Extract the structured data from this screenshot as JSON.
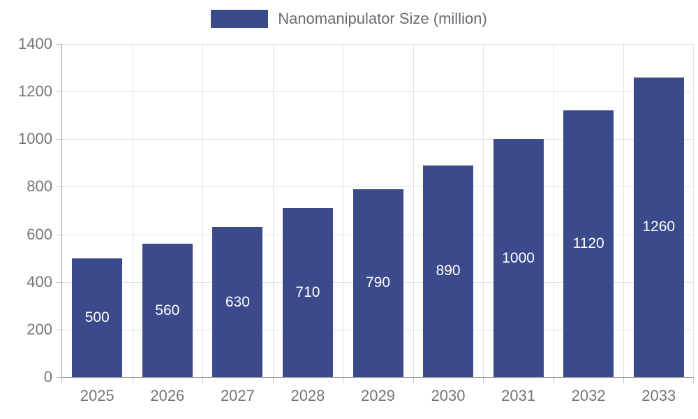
{
  "legend": {
    "label": "Nanomanipulator Size (million)"
  },
  "chart_data": {
    "type": "bar",
    "title": "Nanomanipulator Size (million)",
    "categories": [
      "2025",
      "2026",
      "2027",
      "2028",
      "2029",
      "2030",
      "2031",
      "2032",
      "2033"
    ],
    "values": [
      500,
      560,
      630,
      710,
      790,
      890,
      1000,
      1120,
      1260
    ],
    "xlabel": "",
    "ylabel": "",
    "ylim": [
      0,
      1400
    ],
    "ytick_step": 200,
    "grid": true,
    "legend_position": "top-center",
    "colors": {
      "bar": "#3A4A8A",
      "bar_value_text": "#ffffff",
      "axis_text": "#757575",
      "legend_text": "#676b70",
      "gridline": "#e2e2e2",
      "axis_line": "#9a9a9a",
      "background": "#ffffff"
    }
  }
}
